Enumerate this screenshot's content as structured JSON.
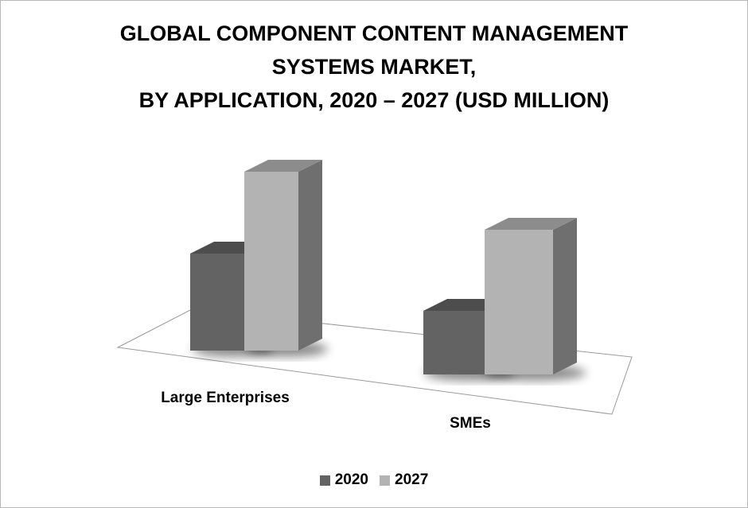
{
  "chart_data": {
    "type": "bar",
    "title_lines": [
      "GLOBAL COMPONENT CONTENT MANAGEMENT",
      "SYSTEMS MARKET,",
      "BY APPLICATION, 2020 – 2027 (USD MILLION)"
    ],
    "categories": [
      "Large Enterprises",
      "SMEs"
    ],
    "series": [
      {
        "name": "2020",
        "values": [
          122,
          80
        ],
        "color": "#636363"
      },
      {
        "name": "2027",
        "values": [
          225,
          182
        ],
        "color": "#b3b3b3"
      }
    ],
    "ylim": [
      0,
      240
    ],
    "grid": false,
    "legend_position": "bottom",
    "style": "3d-column"
  }
}
